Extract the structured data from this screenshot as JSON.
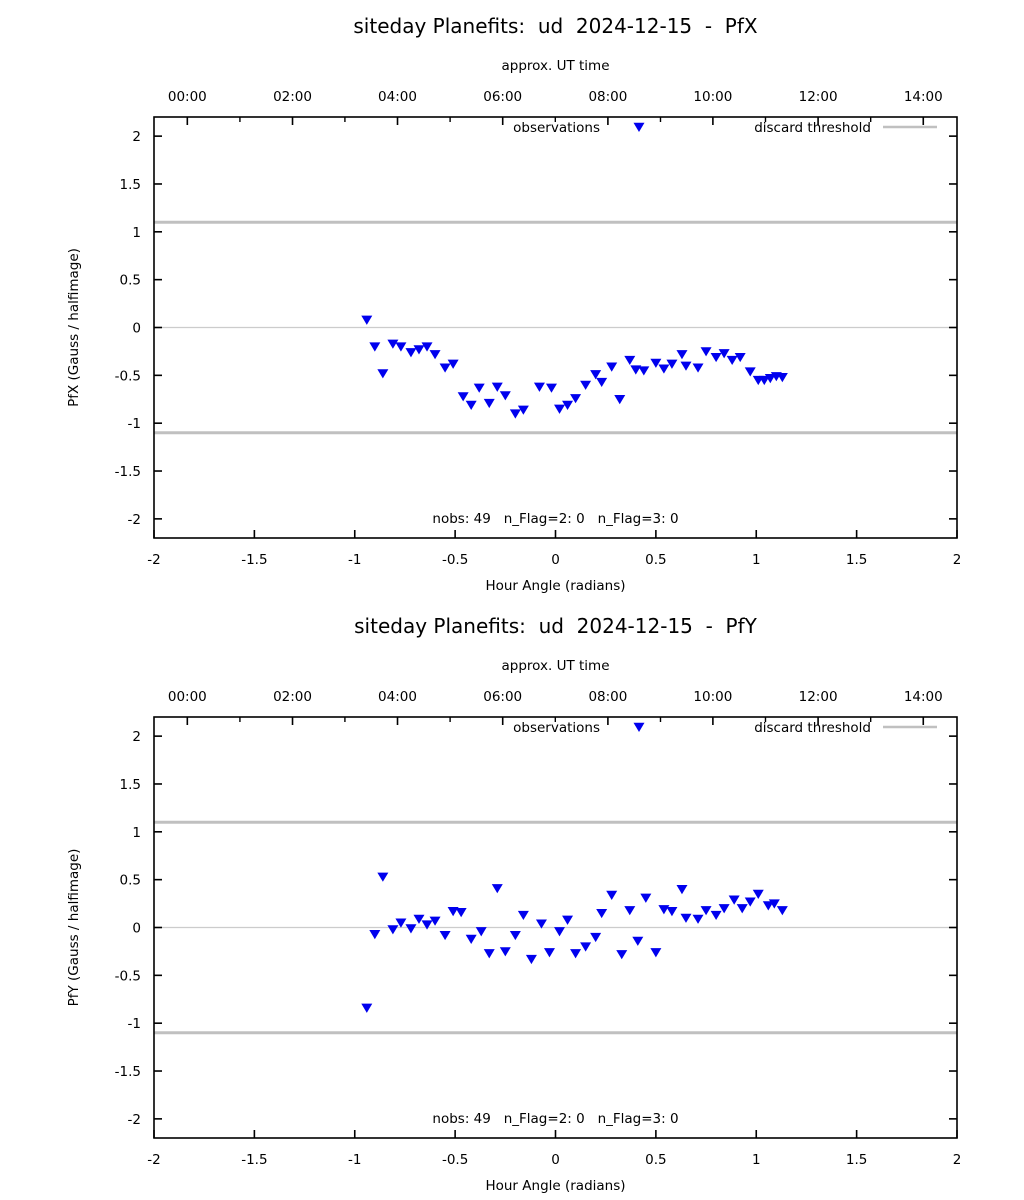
{
  "colors": {
    "observation": "#0000ee",
    "discard_threshold": "#c0c0c0",
    "zero_line": "#cccccc",
    "border": "#000000",
    "text": "#000000",
    "background": "#ffffff"
  },
  "chart_data": [
    {
      "type": "scatter",
      "title": "siteday Planefits:  ud  2024-12-15  -  PfX",
      "xlabel": "Hour Angle (radians)",
      "ylabel": "PfX (Gauss / halfimage)",
      "x2_label": "approx. UT time",
      "x2_ticks": [
        {
          "label": "00:00",
          "x": -1.834
        },
        {
          "label": "02:00",
          "x": -1.31
        },
        {
          "label": "04:00",
          "x": -0.787
        },
        {
          "label": "06:00",
          "x": -0.263
        },
        {
          "label": "08:00",
          "x": 0.261
        },
        {
          "label": "10:00",
          "x": 0.784
        },
        {
          "label": "12:00",
          "x": 1.308
        },
        {
          "label": "14:00",
          "x": 1.832
        }
      ],
      "x2_minor_ticks": [
        -1.572,
        -1.049,
        -0.525,
        -0.001,
        0.523,
        1.046,
        1.57
      ],
      "xlim": [
        -2,
        2
      ],
      "ylim": [
        -2.2,
        2.2
      ],
      "xticks": [
        -2,
        -1.5,
        -1,
        -0.5,
        0,
        0.5,
        1,
        1.5,
        2
      ],
      "yticks": [
        -2,
        -1.5,
        -1,
        -0.5,
        0,
        0.5,
        1,
        1.5,
        2
      ],
      "zero_line": 0,
      "discard_thresholds": [
        1.1,
        -1.1
      ],
      "legend": {
        "observations_label": "observations",
        "threshold_label": "discard threshold"
      },
      "annotation": "nobs: 49   n_Flag=2: 0   n_Flag=3: 0",
      "grid": false,
      "series": [
        {
          "name": "observations",
          "marker": "triangle-down",
          "points": [
            [
              -0.94,
              0.08
            ],
            [
              -0.9,
              -0.2
            ],
            [
              -0.86,
              -0.48
            ],
            [
              -0.81,
              -0.17
            ],
            [
              -0.77,
              -0.2
            ],
            [
              -0.72,
              -0.26
            ],
            [
              -0.68,
              -0.23
            ],
            [
              -0.64,
              -0.2
            ],
            [
              -0.6,
              -0.28
            ],
            [
              -0.55,
              -0.42
            ],
            [
              -0.51,
              -0.38
            ],
            [
              -0.46,
              -0.72
            ],
            [
              -0.42,
              -0.81
            ],
            [
              -0.38,
              -0.63
            ],
            [
              -0.33,
              -0.79
            ],
            [
              -0.29,
              -0.62
            ],
            [
              -0.25,
              -0.71
            ],
            [
              -0.2,
              -0.9
            ],
            [
              -0.16,
              -0.86
            ],
            [
              -0.08,
              -0.62
            ],
            [
              -0.02,
              -0.63
            ],
            [
              0.02,
              -0.85
            ],
            [
              0.06,
              -0.81
            ],
            [
              0.1,
              -0.74
            ],
            [
              0.15,
              -0.6
            ],
            [
              0.2,
              -0.49
            ],
            [
              0.23,
              -0.57
            ],
            [
              0.28,
              -0.41
            ],
            [
              0.32,
              -0.75
            ],
            [
              0.37,
              -0.34
            ],
            [
              0.4,
              -0.44
            ],
            [
              0.44,
              -0.45
            ],
            [
              0.5,
              -0.37
            ],
            [
              0.54,
              -0.43
            ],
            [
              0.58,
              -0.38
            ],
            [
              0.63,
              -0.28
            ],
            [
              0.65,
              -0.4
            ],
            [
              0.71,
              -0.42
            ],
            [
              0.75,
              -0.25
            ],
            [
              0.8,
              -0.31
            ],
            [
              0.84,
              -0.27
            ],
            [
              0.88,
              -0.34
            ],
            [
              0.92,
              -0.31
            ],
            [
              0.97,
              -0.46
            ],
            [
              1.01,
              -0.55
            ],
            [
              1.04,
              -0.55
            ],
            [
              1.07,
              -0.53
            ],
            [
              1.1,
              -0.51
            ],
            [
              1.13,
              -0.52
            ]
          ]
        }
      ]
    },
    {
      "type": "scatter",
      "title": "siteday Planefits:  ud  2024-12-15  -  PfY",
      "xlabel": "Hour Angle (radians)",
      "ylabel": "PfY (Gauss / halfimage)",
      "x2_label": "approx. UT time",
      "x2_ticks": [
        {
          "label": "00:00",
          "x": -1.834
        },
        {
          "label": "02:00",
          "x": -1.31
        },
        {
          "label": "04:00",
          "x": -0.787
        },
        {
          "label": "06:00",
          "x": -0.263
        },
        {
          "label": "08:00",
          "x": 0.261
        },
        {
          "label": "10:00",
          "x": 0.784
        },
        {
          "label": "12:00",
          "x": 1.308
        },
        {
          "label": "14:00",
          "x": 1.832
        }
      ],
      "x2_minor_ticks": [
        -1.572,
        -1.049,
        -0.525,
        -0.001,
        0.523,
        1.046,
        1.57
      ],
      "xlim": [
        -2,
        2
      ],
      "ylim": [
        -2.2,
        2.2
      ],
      "xticks": [
        -2,
        -1.5,
        -1,
        -0.5,
        0,
        0.5,
        1,
        1.5,
        2
      ],
      "yticks": [
        -2,
        -1.5,
        -1,
        -0.5,
        0,
        0.5,
        1,
        1.5,
        2
      ],
      "zero_line": 0,
      "discard_thresholds": [
        1.1,
        -1.1
      ],
      "legend": {
        "observations_label": "observations",
        "threshold_label": "discard threshold"
      },
      "annotation": "nobs: 49   n_Flag=2: 0   n_Flag=3: 0",
      "grid": false,
      "series": [
        {
          "name": "observations",
          "marker": "triangle-down",
          "points": [
            [
              -0.94,
              -0.84
            ],
            [
              -0.9,
              -0.07
            ],
            [
              -0.86,
              0.53
            ],
            [
              -0.81,
              -0.02
            ],
            [
              -0.77,
              0.05
            ],
            [
              -0.72,
              -0.01
            ],
            [
              -0.68,
              0.09
            ],
            [
              -0.64,
              0.03
            ],
            [
              -0.6,
              0.07
            ],
            [
              -0.55,
              -0.08
            ],
            [
              -0.51,
              0.17
            ],
            [
              -0.47,
              0.16
            ],
            [
              -0.42,
              -0.12
            ],
            [
              -0.37,
              -0.04
            ],
            [
              -0.33,
              -0.27
            ],
            [
              -0.29,
              0.41
            ],
            [
              -0.25,
              -0.25
            ],
            [
              -0.2,
              -0.08
            ],
            [
              -0.16,
              0.13
            ],
            [
              -0.12,
              -0.33
            ],
            [
              -0.07,
              0.04
            ],
            [
              -0.03,
              -0.26
            ],
            [
              0.02,
              -0.04
            ],
            [
              0.06,
              0.08
            ],
            [
              0.1,
              -0.27
            ],
            [
              0.15,
              -0.2
            ],
            [
              0.2,
              -0.1
            ],
            [
              0.23,
              0.15
            ],
            [
              0.28,
              0.34
            ],
            [
              0.33,
              -0.28
            ],
            [
              0.37,
              0.18
            ],
            [
              0.41,
              -0.14
            ],
            [
              0.45,
              0.31
            ],
            [
              0.5,
              -0.26
            ],
            [
              0.54,
              0.19
            ],
            [
              0.58,
              0.17
            ],
            [
              0.63,
              0.4
            ],
            [
              0.65,
              0.1
            ],
            [
              0.71,
              0.09
            ],
            [
              0.75,
              0.18
            ],
            [
              0.8,
              0.13
            ],
            [
              0.84,
              0.2
            ],
            [
              0.89,
              0.29
            ],
            [
              0.93,
              0.2
            ],
            [
              0.97,
              0.27
            ],
            [
              1.01,
              0.35
            ],
            [
              1.06,
              0.23
            ],
            [
              1.09,
              0.25
            ],
            [
              1.13,
              0.18
            ]
          ]
        }
      ]
    }
  ]
}
